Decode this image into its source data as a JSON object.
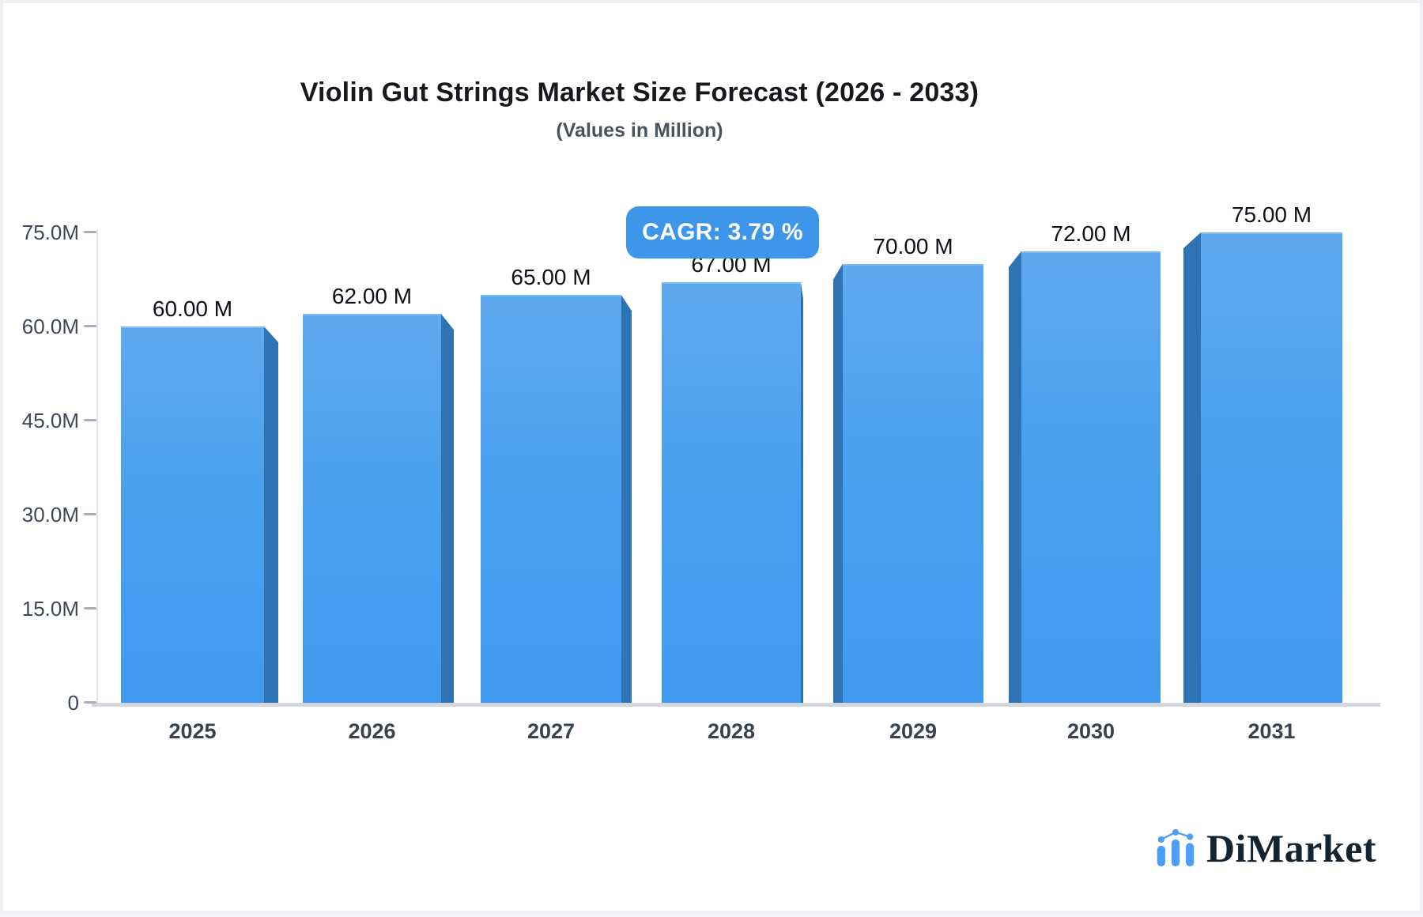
{
  "header": {
    "title": "Violin Gut Strings Market Size Forecast (2026 - 2033)",
    "subtitle": "(Values in Million)"
  },
  "chart_data": {
    "type": "bar",
    "title": "Violin Gut Strings Market Size Forecast (2026 - 2033)",
    "subtitle": "(Values in Million)",
    "categories": [
      "2025",
      "2026",
      "2027",
      "2028",
      "2029",
      "2030",
      "2031"
    ],
    "values": [
      60,
      62,
      65,
      67,
      70,
      72,
      75
    ],
    "value_labels": [
      "60.00 M",
      "62.00 M",
      "65.00 M",
      "67.00 M",
      "70.00 M",
      "72.00 M",
      "75.00 M"
    ],
    "xlabel": "",
    "ylabel": "",
    "ylim": [
      0,
      75
    ],
    "yticks": {
      "values": [
        0,
        15,
        30,
        45,
        60,
        75
      ],
      "labels": [
        "0",
        "15.0M",
        "30.0M",
        "45.0M",
        "60.0M",
        "75.0M"
      ]
    },
    "grid": false,
    "legend": false,
    "annotations": [
      {
        "type": "badge",
        "text": "CAGR: 3.79 %"
      }
    ],
    "bar_style": {
      "effect": "3d",
      "face_top_color": "#5FA9EE",
      "face_bottom_color": "#3F9AF0",
      "side_color": "#2E74B5"
    },
    "axis_colors": {
      "axis_line": "#E0E3E8",
      "baseline": "#D3D6DC",
      "tick_text": "#3E4857",
      "category_text": "#39424F",
      "value_label_text": "#0D1117"
    }
  },
  "badge_color": "#3D96E9",
  "logo": {
    "text": "DiMarket",
    "text_color": "#132330",
    "icon_color": "#4C9EF6",
    "icon": "bar-chart-with-dots-logo-icon"
  }
}
